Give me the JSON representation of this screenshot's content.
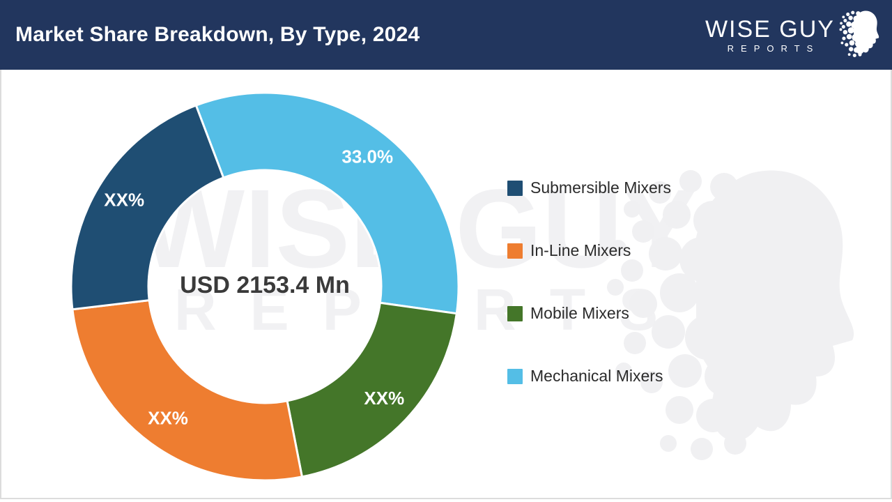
{
  "header": {
    "title": "Market Share Breakdown, By Type, 2024",
    "logo": {
      "name": "WISE GUY",
      "subtext": "REPORTS"
    }
  },
  "watermark": {
    "line1": "WISE GUY",
    "line2": "REPORTS"
  },
  "chart_data": {
    "type": "pie",
    "subtype": "donut",
    "title": "Market Share Breakdown, By Type, 2024",
    "center_label": "USD 2153.4 Mn",
    "start_angle_deg": -20.8,
    "divider_color": "#ffffff",
    "label_color": "#ffffff",
    "segments": [
      {
        "name": "Mechanical Mixers",
        "value_pct": 33.0,
        "label": "33.0%",
        "color": "#54bee6"
      },
      {
        "name": "Mobile Mixers",
        "value_pct": 19.7,
        "label": "XX%",
        "color": "#447629"
      },
      {
        "name": "In-Line Mixers",
        "value_pct": 26.2,
        "label": "XX%",
        "color": "#ee7d30"
      },
      {
        "name": "Submersible Mixers",
        "value_pct": 21.1,
        "label": "XX%",
        "color": "#1f4e73"
      }
    ],
    "legend": [
      {
        "label": "Submersible Mixers",
        "color": "#1f4e73"
      },
      {
        "label": "In-Line Mixers",
        "color": "#ee7d30"
      },
      {
        "label": "Mobile Mixers",
        "color": "#447629"
      },
      {
        "label": "Mechanical Mixers",
        "color": "#54bee6"
      }
    ],
    "legend_position": "right",
    "geometry": {
      "outer_radius": 278,
      "inner_radius": 167,
      "label_radius": 236
    }
  }
}
